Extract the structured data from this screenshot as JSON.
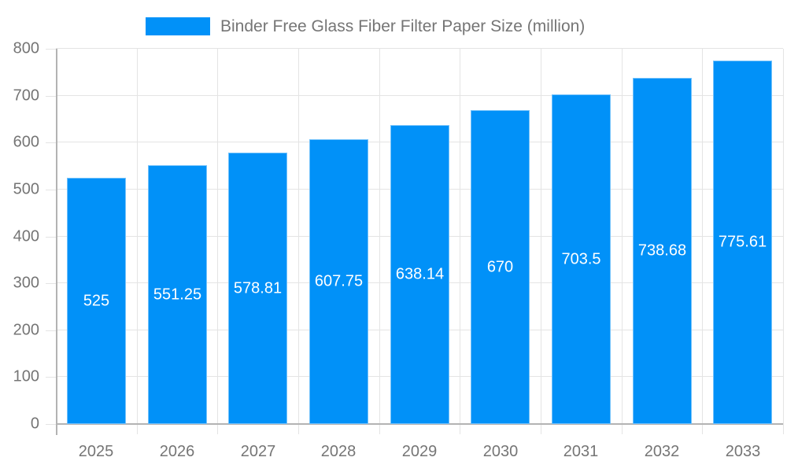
{
  "chart_data": {
    "type": "bar",
    "title": "Binder Free Glass Fiber Filter Paper Size (million)",
    "categories": [
      "2025",
      "2026",
      "2027",
      "2028",
      "2029",
      "2030",
      "2031",
      "2032",
      "2033"
    ],
    "values": [
      525,
      551.25,
      578.81,
      607.75,
      638.14,
      670,
      703.5,
      738.68,
      775.61
    ],
    "value_labels": [
      "525",
      "551.25",
      "578.81",
      "607.75",
      "638.14",
      "670",
      "703.5",
      "738.68",
      "775.61"
    ],
    "xlabel": "",
    "ylabel": "",
    "ylim": [
      0,
      800
    ],
    "ytick_step": 100,
    "ytick_labels": [
      "0",
      "100",
      "200",
      "300",
      "400",
      "500",
      "600",
      "700",
      "800"
    ],
    "grid": "both",
    "legend": {
      "position": "top",
      "label": "Binder Free Glass Fiber Filter Paper Size (million)"
    },
    "colors": {
      "bar": "#0191F8",
      "bar_edge": "#7CC0F9",
      "axis_line": "#B3B3B3",
      "gridline": "#E4E4E4",
      "tick_label": "#757575",
      "value_label": "#FFFFFF",
      "background": "#FFFFFF"
    }
  }
}
